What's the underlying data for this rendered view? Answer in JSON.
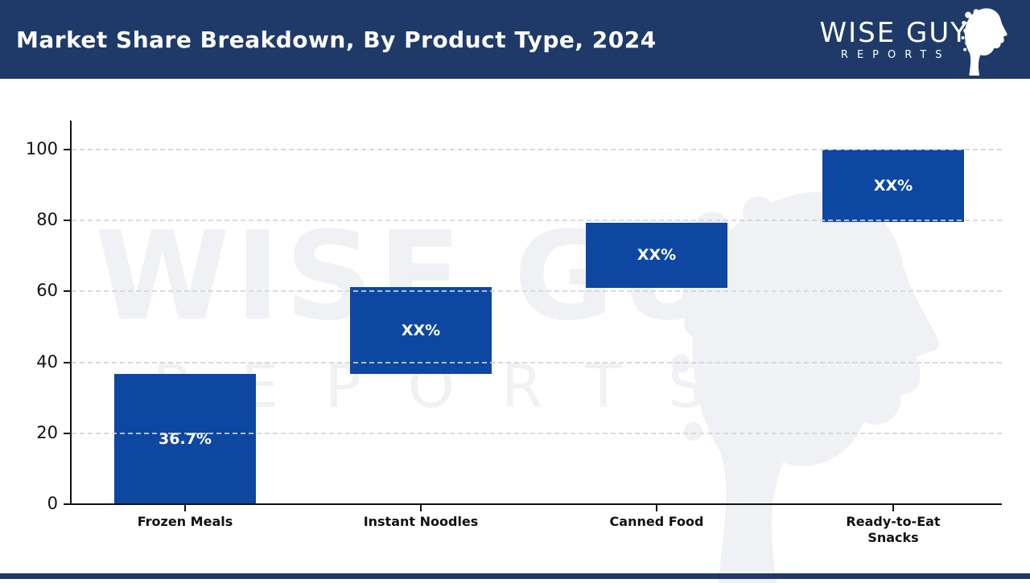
{
  "header": {
    "title": "Market Share Breakdown, By Product Type, 2024",
    "logo": {
      "line1": "WISE GUY",
      "line2": "REPORTS"
    }
  },
  "watermark": {
    "line1": "WISE GUY",
    "line2": "REPORTS"
  },
  "colors": {
    "header_bg": "#1f3a68",
    "bar_fill": "#0d47a1",
    "bar_label_text": "#ffffff",
    "gridline": "#d9d9d9",
    "axis": "#111111",
    "watermark": "#f0f1f4"
  },
  "chart_data": {
    "type": "bar",
    "subtype": "waterfall",
    "title": "Market Share Breakdown, By Product Type, 2024",
    "xlabel": "",
    "ylabel": "",
    "categories": [
      "Frozen Meals",
      "Instant Noodles",
      "Canned Food",
      "Ready-to-Eat Snacks"
    ],
    "segments": [
      {
        "category": "Frozen Meals",
        "start": 0,
        "end": 36.7,
        "label": "36.7%"
      },
      {
        "category": "Instant Noodles",
        "start": 36.7,
        "end": 61.2,
        "label": "XX%"
      },
      {
        "category": "Canned Food",
        "start": 61.0,
        "end": 79.4,
        "label": "XX%"
      },
      {
        "category": "Ready-to-Eat Snacks",
        "start": 79.6,
        "end": 100,
        "label": "XX%"
      }
    ],
    "yticks": [
      0,
      20,
      40,
      60,
      80,
      100
    ],
    "ylim": [
      0,
      100
    ],
    "grid": "dashed-horizontal",
    "legend": "none"
  }
}
